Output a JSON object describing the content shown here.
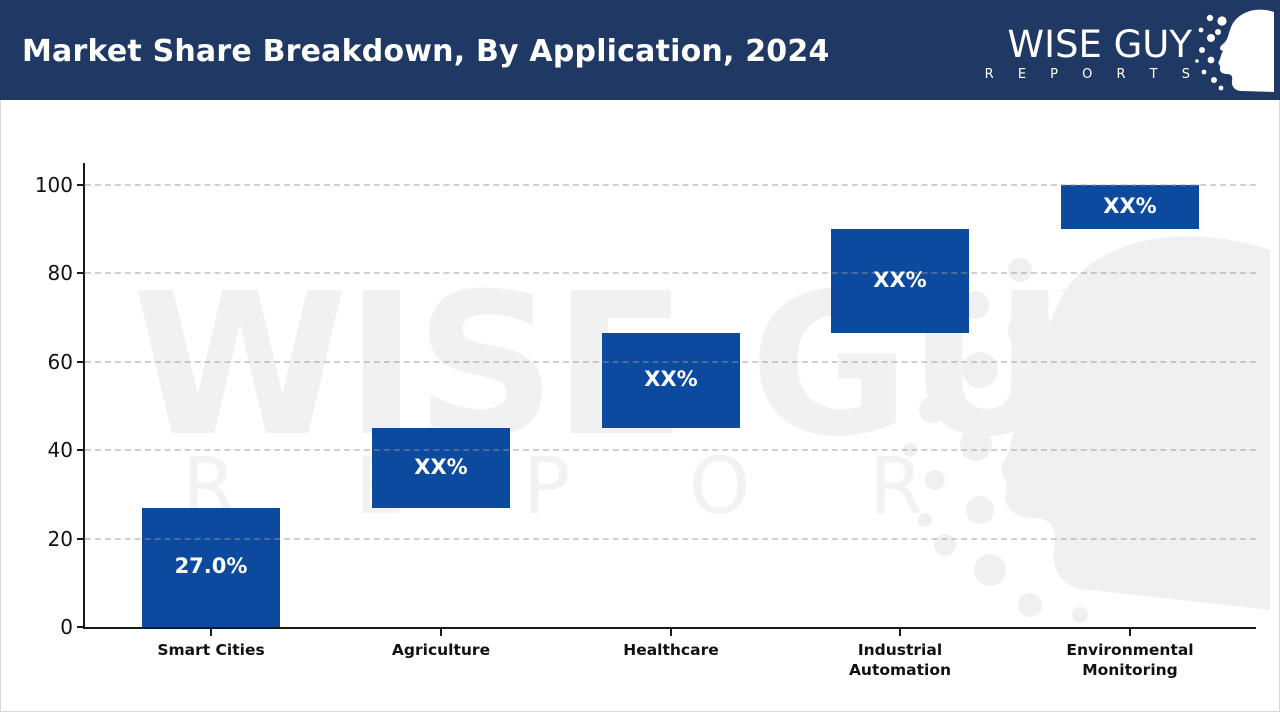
{
  "header": {
    "title": "Market Share Breakdown, By Application, 2024",
    "logo": {
      "line1": "WISE GUY",
      "line2": "R E P O R T S"
    }
  },
  "watermark": {
    "line1": "WISE GUY",
    "line2": "R E P O R T S"
  },
  "colors": {
    "header_bg": "#1f3864",
    "bar": "#0b4a9e",
    "grid": "#cccccc",
    "axis": "#1a1a1a",
    "watermark": "#f1f1f1",
    "bar_label": "#ffffff",
    "title_text": "#ffffff"
  },
  "chart_data": {
    "type": "bar",
    "subtype": "waterfall",
    "title": "Market Share Breakdown, By Application, 2024",
    "categories": [
      "Smart Cities",
      "Agriculture",
      "Healthcare",
      "Industrial Automation",
      "Environmental Monitoring"
    ],
    "segments": [
      {
        "category": "Smart Cities",
        "start": 0,
        "end": 27,
        "label": "27.0%"
      },
      {
        "category": "Agriculture",
        "start": 27,
        "end": 45,
        "label": "XX%"
      },
      {
        "category": "Healthcare",
        "start": 45,
        "end": 66.5,
        "label": "XX%"
      },
      {
        "category": "Industrial Automation",
        "start": 66.5,
        "end": 90,
        "label": "XX%"
      },
      {
        "category": "Environmental Monitoring",
        "start": 90,
        "end": 100,
        "label": "XX%"
      }
    ],
    "y_ticks": [
      0,
      20,
      40,
      60,
      80,
      100
    ],
    "ylim": [
      0,
      105
    ],
    "xlabel": "",
    "ylabel": "",
    "grid": "horizontal-dashed",
    "legend": "none"
  }
}
